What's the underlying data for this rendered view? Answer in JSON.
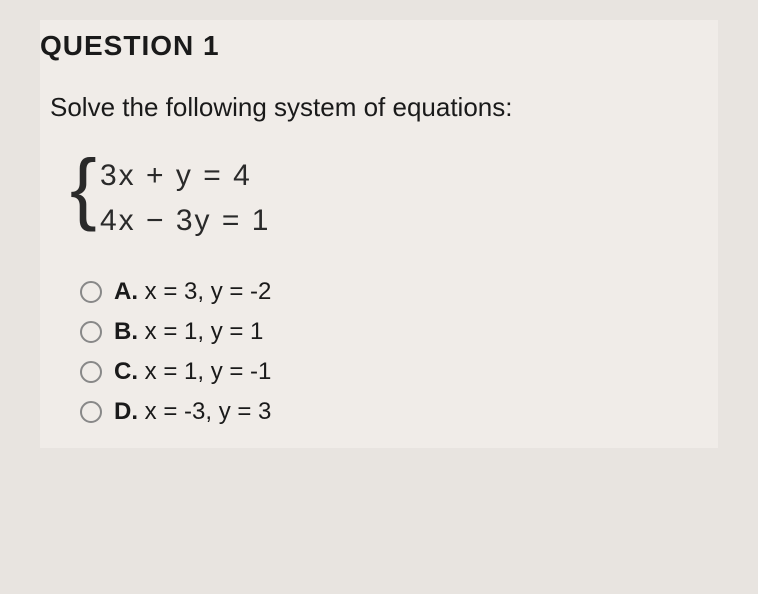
{
  "question": {
    "header": "QUESTION 1",
    "prompt": "Solve the following system of equations:",
    "equations": {
      "line1": "3x + y = 4",
      "line2": "4x − 3y = 1"
    },
    "options": [
      {
        "letter": "A.",
        "text": "x = 3, y = -2"
      },
      {
        "letter": "B.",
        "text": "x = 1, y = 1"
      },
      {
        "letter": "C.",
        "text": "x = 1, y = -1"
      },
      {
        "letter": "D.",
        "text": "x = -3, y = 3"
      }
    ]
  },
  "styling": {
    "background_color": "#e8e4e0",
    "text_color": "#1a1a1a",
    "header_fontsize": 28,
    "prompt_fontsize": 26,
    "equation_fontsize": 30,
    "option_fontsize": 24,
    "radio_border_color": "#888888"
  }
}
